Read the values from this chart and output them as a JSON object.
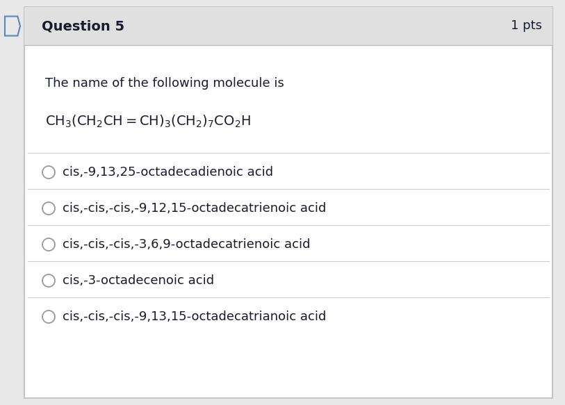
{
  "title": "Question 5",
  "pts": "1 pts",
  "question_text": "The name of the following molecule is",
  "options": [
    "cis,-9,13,25-octadecadienoic acid",
    "cis,-cis,-cis,-9,12,15-octadecatrienoic acid",
    "cis,-cis,-cis,-3,6,9-octadecatrienoic acid",
    "cis,-3-octadecenoic acid",
    "cis,-cis,-cis,-9,13,15-octadecatrianoic acid"
  ],
  "bg_color": "#e8e8e8",
  "header_bg": "#e0e0e0",
  "body_bg": "#ffffff",
  "border_color": "#bbbbbb",
  "title_fontsize": 14,
  "pts_fontsize": 13,
  "question_fontsize": 13,
  "molecule_fontsize": 14,
  "option_fontsize": 13,
  "text_color": "#1a1a2e",
  "divider_color": "#cccccc",
  "radio_color": "#aaaaaa",
  "icon_color": "#5588bb"
}
